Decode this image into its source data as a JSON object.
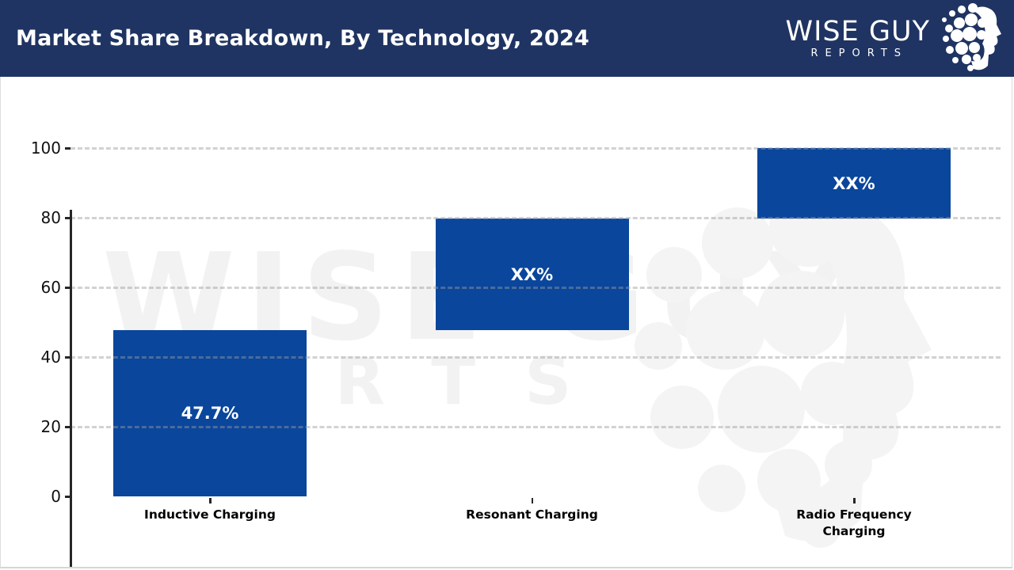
{
  "header": {
    "title": "Market Share Breakdown, By Technology, 2024",
    "logo": {
      "line1": "WISE GUY",
      "line2": "REPORTS"
    },
    "bg_color": "#1f3462"
  },
  "watermark": {
    "line1": "WISE GUY",
    "line2": "PORTS"
  },
  "chart_data": {
    "type": "bar",
    "subtype": "waterfall",
    "title": "Market Share Breakdown, By Technology, 2024",
    "categories": [
      "Inductive Charging",
      "Resonant Charging",
      "Radio Frequency Charging"
    ],
    "series": [
      {
        "name": "Market Share (%)",
        "segments": [
          {
            "category": "Inductive Charging",
            "start": 0,
            "end": 47.7,
            "label": "47.7%"
          },
          {
            "category": "Resonant Charging",
            "start": 47.7,
            "end": 79.7,
            "label": "XX%"
          },
          {
            "category": "Radio Frequency Charging",
            "start": 79.7,
            "end": 100,
            "label": "XX%"
          }
        ]
      }
    ],
    "ylim": [
      0,
      100
    ],
    "yticks": [
      0,
      20,
      40,
      60,
      80,
      100
    ],
    "grid": "horizontal-dashed",
    "legend": "none",
    "bar_color": "#0a469c",
    "bar_label_color": "#ffffff",
    "axis_color": "#262626",
    "gridline_color": "#d9d9d9"
  }
}
